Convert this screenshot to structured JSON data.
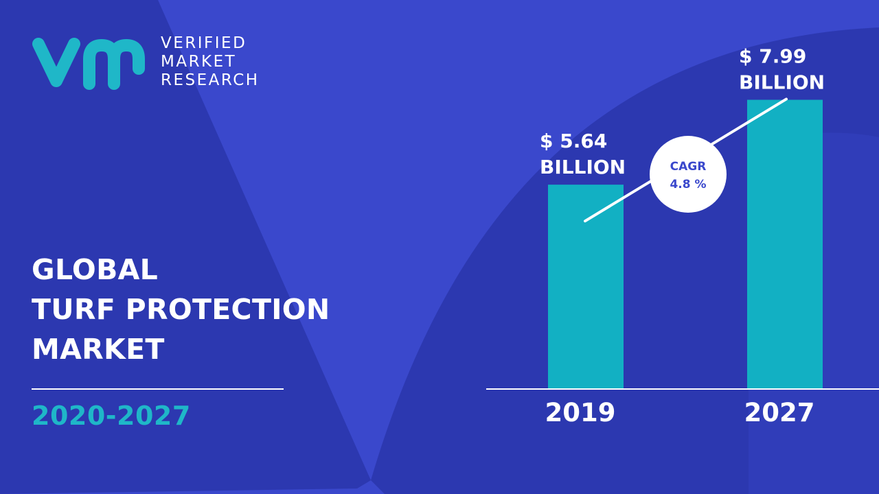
{
  "brand": {
    "line1": "VERIFIED",
    "line2": "MARKET",
    "line3": "RESEARCH",
    "logo_mark_color": "#1fb7c8"
  },
  "title": {
    "line1": "GLOBAL",
    "line2": "TURF PROTECTION",
    "line3": "MARKET"
  },
  "period": "2020-2027",
  "colors": {
    "background": "#3a48cc",
    "background_shape": "#2c38b0",
    "bar": "#12b0c3",
    "accent": "#1fb7c8",
    "text": "#ffffff"
  },
  "chart_data": {
    "type": "bar",
    "categories": [
      "2019",
      "2027"
    ],
    "values": [
      5.64,
      7.99
    ],
    "value_labels": [
      {
        "line1": "$ 5.64",
        "line2": "BILLION"
      },
      {
        "line1": "$ 7.99",
        "line2": "BILLION"
      }
    ],
    "unit": "USD Billion",
    "ylim": [
      0,
      9.5
    ],
    "grid": false,
    "legend": "none",
    "cagr": {
      "label": "CAGR",
      "value": "4.8 %"
    }
  }
}
